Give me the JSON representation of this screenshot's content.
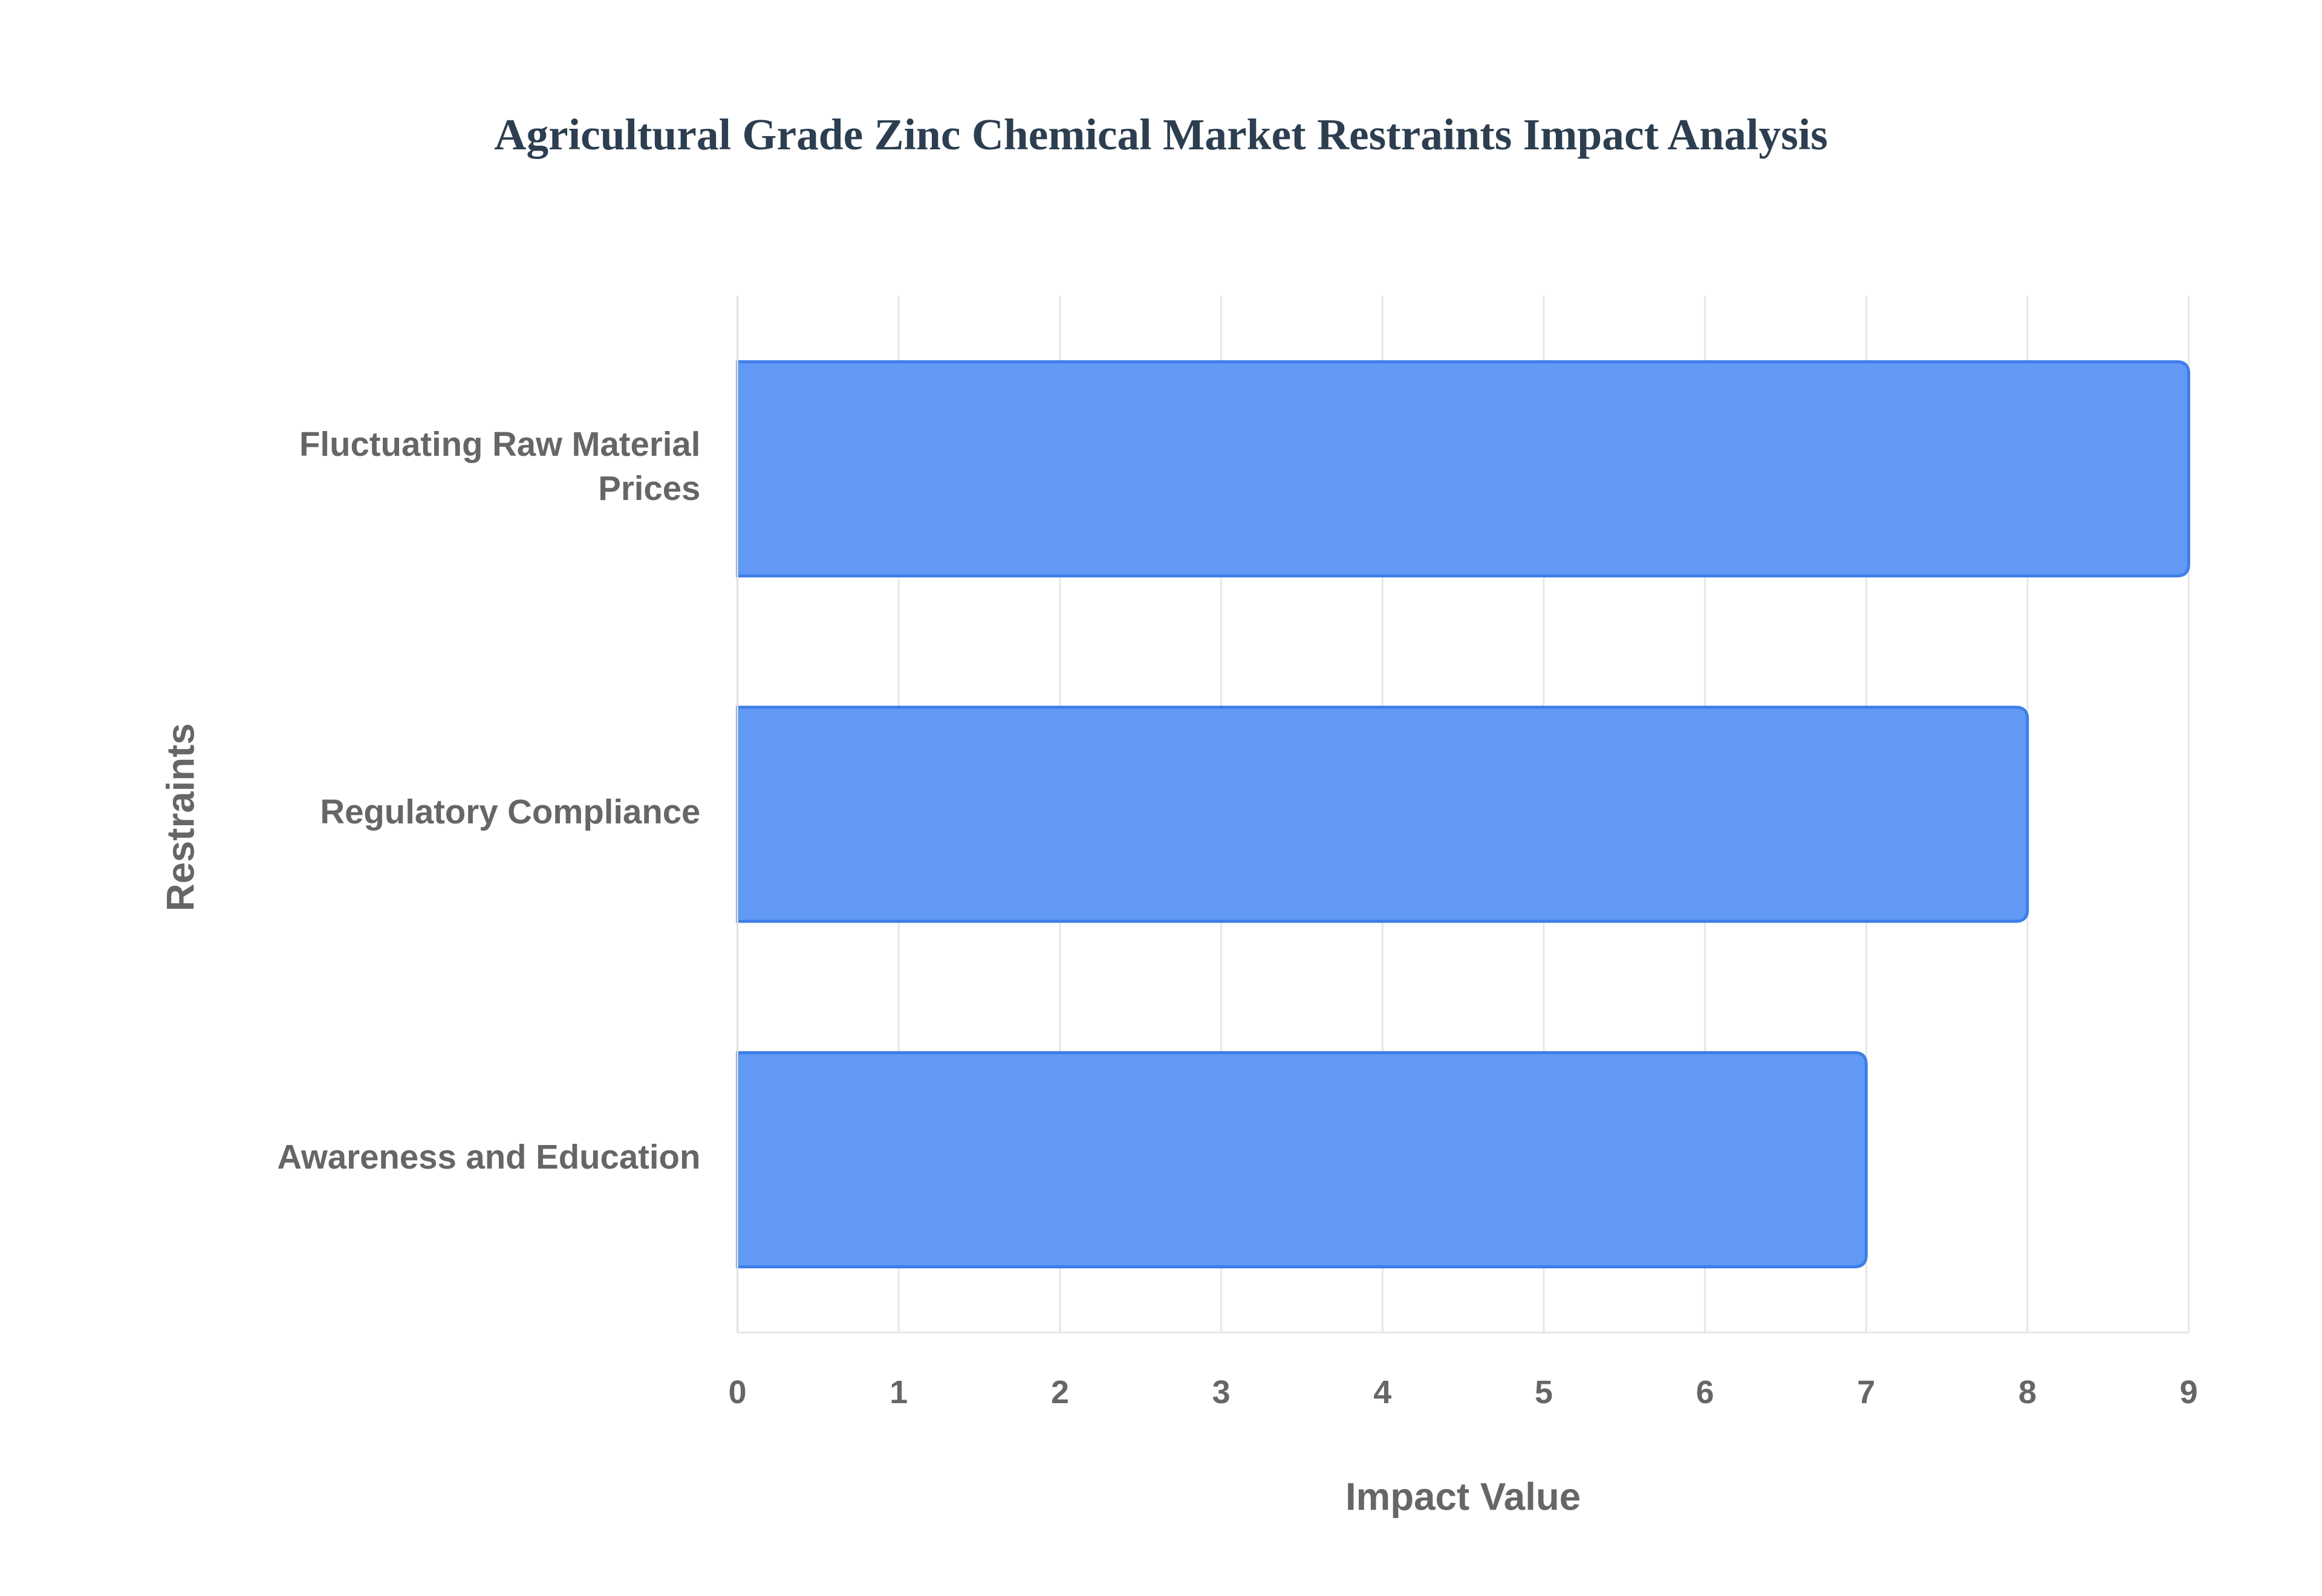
{
  "chart_data": {
    "type": "bar",
    "orientation": "horizontal",
    "title": "Agricultural Grade Zinc Chemical Market Restraints Impact Analysis",
    "x_label": "Impact Value",
    "y_label": "Restraints",
    "categories": [
      "Fluctuating Raw Material Prices",
      "Regulatory Compliance",
      "Awareness and Education"
    ],
    "values": [
      9,
      8,
      7
    ],
    "color": "#6199f5",
    "xlim": [
      0,
      9
    ],
    "xticks": [
      0,
      1,
      2,
      3,
      4,
      5,
      6,
      7,
      8,
      9
    ],
    "grid": true
  }
}
